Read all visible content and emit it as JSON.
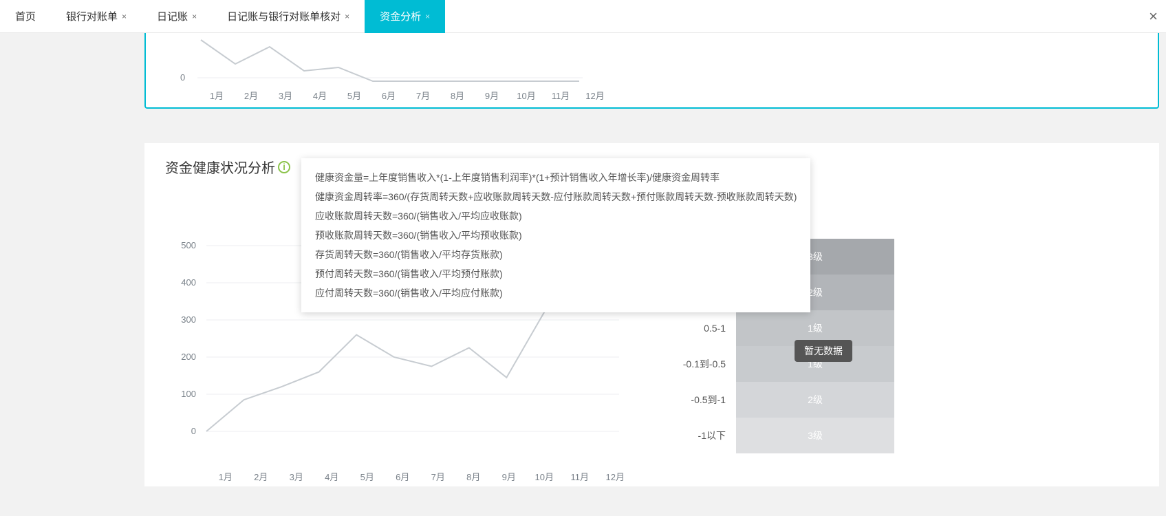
{
  "tabs": {
    "items": [
      {
        "label": "首页",
        "closable": false,
        "active": false
      },
      {
        "label": "银行对账单",
        "closable": true,
        "active": false
      },
      {
        "label": "日记账",
        "closable": true,
        "active": false
      },
      {
        "label": "日记账与银行对账单核对",
        "closable": true,
        "active": false
      },
      {
        "label": "资金分析",
        "closable": true,
        "active": true
      }
    ],
    "close_all_glyph": "×"
  },
  "top_chart": {
    "type": "line",
    "y_visible": [
      "0"
    ],
    "x_labels": [
      "1月",
      "2月",
      "3月",
      "4月",
      "5月",
      "6月",
      "7月",
      "8月",
      "9月",
      "10月",
      "11月",
      "12月"
    ],
    "line_color": "#c7ccd1",
    "points": [
      {
        "x": 0,
        "y": 55
      },
      {
        "x": 1,
        "y": 20
      },
      {
        "x": 2,
        "y": 45
      },
      {
        "x": 3,
        "y": 10
      },
      {
        "x": 4,
        "y": 15
      },
      {
        "x": 5,
        "y": -5
      },
      {
        "x": 6,
        "y": -5
      },
      {
        "x": 7,
        "y": -5
      },
      {
        "x": 8,
        "y": -5
      },
      {
        "x": 9,
        "y": -5
      },
      {
        "x": 10,
        "y": -5
      },
      {
        "x": 11,
        "y": -5
      }
    ],
    "grid_color": "#eceef0"
  },
  "health_section": {
    "title": "资金健康状况分析",
    "info_glyph": "i",
    "tooltip_lines": [
      "健康资金量=上年度销售收入*(1-上年度销售利润率)*(1+预计销售收入年增长率)/健康资金周转率",
      "健康资金周转率=360/(存货周转天数+应收账款周转天数-应付账款周转天数+预付账款周转天数-预收账款周转天数)",
      "应收账款周转天数=360/(销售收入/平均应收账款)",
      "预收账款周转天数=360/(销售收入/平均预收账款)",
      "存货周转天数=360/(销售收入/平均存货账款)",
      "预付周转天数=360/(销售收入/平均预付账款)",
      "应付周转天数=360/(销售收入/平均应付账款)"
    ],
    "chart": {
      "type": "line",
      "y_ticks": [
        0,
        100,
        200,
        300,
        400,
        500
      ],
      "ylim": [
        0,
        500
      ],
      "x_labels": [
        "1月",
        "2月",
        "3月",
        "4月",
        "5月",
        "6月",
        "7月",
        "8月",
        "9月",
        "10月",
        "11月",
        "12月"
      ],
      "line_color": "#c7ccd1",
      "grid_color": "#eceef0",
      "axis_text_color": "#7a828a",
      "values": [
        0,
        85,
        120,
        160,
        260,
        200,
        175,
        225,
        145,
        320,
        470,
        440
      ]
    },
    "levels": {
      "rows": [
        {
          "range": "",
          "label": "3级",
          "bg": "#a5a8ac"
        },
        {
          "range": "",
          "label": "2级",
          "bg": "#b2b5b9"
        },
        {
          "range": "0.5-1",
          "label": "1级",
          "bg": "#c2c5c8"
        },
        {
          "range": "-0.1到-0.5",
          "label": "1级",
          "bg": "#c8cbce"
        },
        {
          "range": "-0.5到-1",
          "label": "2级",
          "bg": "#d4d6d9"
        },
        {
          "range": "-1以下",
          "label": "3级",
          "bg": "#dedfe1"
        }
      ],
      "no_data_label": "暂无数据",
      "no_data_bg": "#555555"
    }
  }
}
